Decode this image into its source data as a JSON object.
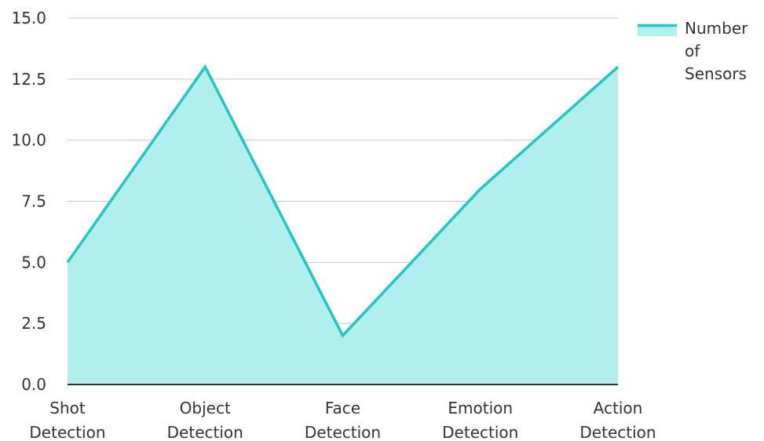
{
  "chart_data": {
    "type": "area",
    "title": "",
    "xlabel": "",
    "ylabel": "",
    "categories": [
      "Shot Detection",
      "Object Detection",
      "Face Detection",
      "Emotion Detection",
      "Action Detection"
    ],
    "series": [
      {
        "name": "Number of Sensors",
        "values": [
          5,
          13,
          2,
          8,
          13
        ]
      }
    ],
    "ylim": [
      0,
      15
    ],
    "y_ticks": [
      "0.0",
      "2.5",
      "5.0",
      "7.5",
      "10.0",
      "12.5",
      "15.0"
    ],
    "grid": true,
    "legend_position": "top-right",
    "colors": {
      "line": "#1ec8c8",
      "fill": "#b1eeee",
      "grid": "#c8c8c8",
      "axis": "#333333"
    }
  }
}
